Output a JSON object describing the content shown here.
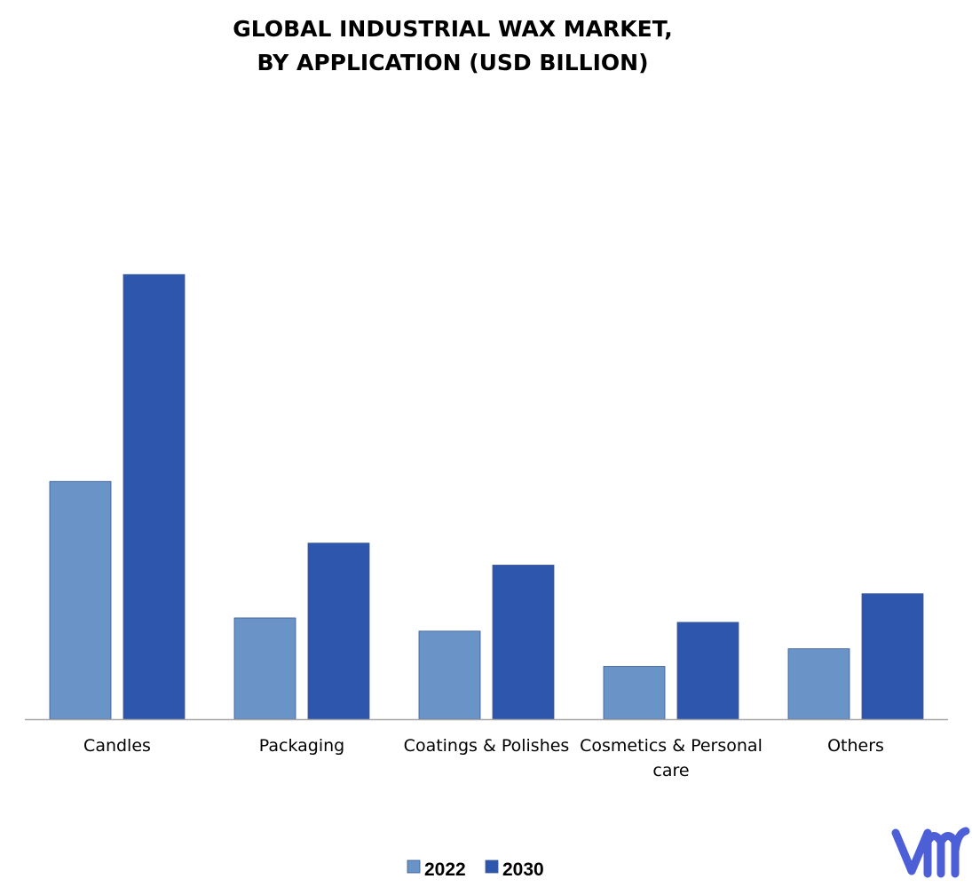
{
  "chart_data": {
    "type": "bar",
    "title_lines": [
      "GLOBAL INDUSTRIAL WAX MARKET,",
      "BY APPLICATION (USD BILLION)"
    ],
    "categories": [
      [
        "Candles"
      ],
      [
        "Packaging"
      ],
      [
        "Coatings & Polishes"
      ],
      [
        "Cosmetics & Personal",
        "care"
      ],
      [
        "Others"
      ]
    ],
    "series": [
      {
        "name": "2022",
        "color": "#6a93c8",
        "values": [
          5.4,
          2.3,
          2.0,
          1.2,
          1.6
        ]
      },
      {
        "name": "2030",
        "color": "#2e56ad",
        "values": [
          10.1,
          4.0,
          3.5,
          2.2,
          2.85
        ]
      }
    ],
    "ylim": [
      0,
      12
    ],
    "y_axis_visible": false,
    "grid": false,
    "legend": "bottom-center",
    "logo": "vmr-logo"
  }
}
